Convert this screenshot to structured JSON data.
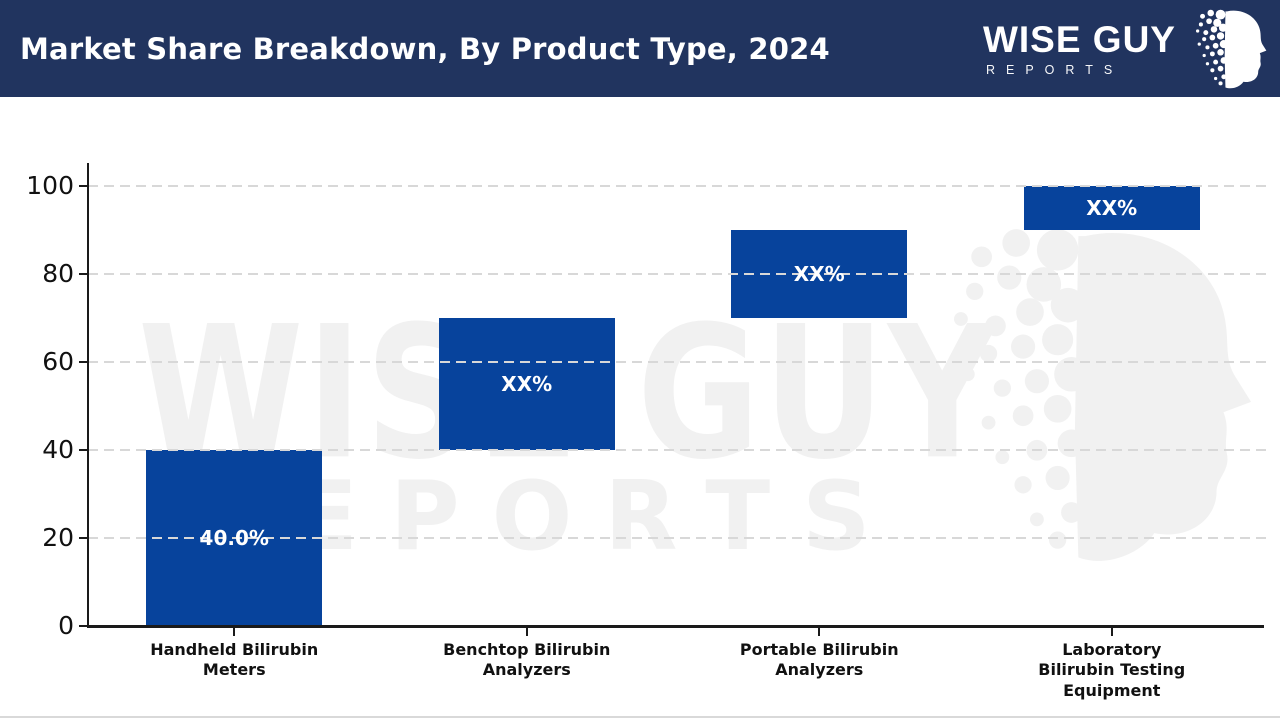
{
  "header": {
    "title": "Market Share Breakdown, By Product Type, 2024",
    "bg_color": "#21345f",
    "logo": {
      "line1": "WISE GUY",
      "line2": "REPORTS"
    }
  },
  "watermark": {
    "line1": "WISE GUY",
    "line2": "REPORTS"
  },
  "chart_data": {
    "type": "bar",
    "subtype": "floating-segment-progression",
    "title": "Market Share Breakdown, By Product Type, 2024",
    "categories": [
      "Handheld Bilirubin\nMeters",
      "Benchtop Bilirubin\nAnalyzers",
      "Portable Bilirubin\nAnalyzers",
      "Laboratory\nBilirubin Testing\nEquipment"
    ],
    "bars": [
      {
        "range": [
          0,
          40
        ],
        "label": "40.0%"
      },
      {
        "range": [
          40,
          70
        ],
        "label": "XX%"
      },
      {
        "range": [
          70,
          90
        ],
        "label": "XX%"
      },
      {
        "range": [
          90,
          100
        ],
        "label": "XX%"
      }
    ],
    "segment_values": [
      40,
      30,
      20,
      10
    ],
    "yticks": [
      0,
      20,
      40,
      60,
      80,
      100
    ],
    "ylim": [
      0,
      105
    ],
    "xlabel": "",
    "ylabel": "",
    "legend": null,
    "grid": {
      "horizontal": true,
      "style": "dashed",
      "color": "#d8d8d8",
      "drawn_over_bars": true
    },
    "bar_color": "#07439c",
    "value_label_color": "#ffffff",
    "axis_color": "#1a1a1a"
  }
}
